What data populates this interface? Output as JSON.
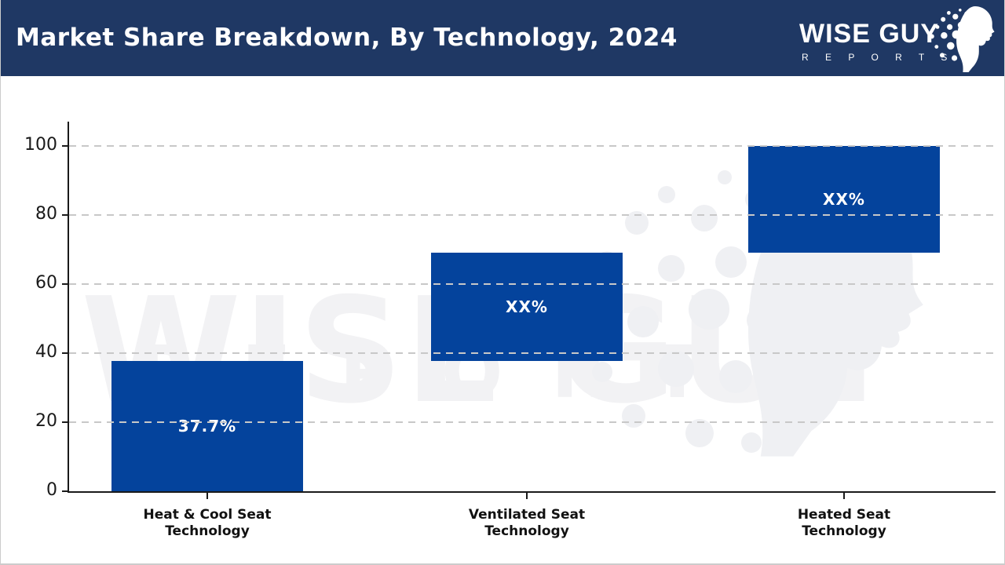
{
  "header": {
    "title": "Market Share Breakdown, By Technology, 2024",
    "logo": {
      "name": "WISE GUY",
      "sub": "R E P O R T S",
      "face_icon": "dotted-face-profile"
    },
    "bg_color": "#1f3864"
  },
  "watermark": {
    "line1": "WISE GUY",
    "line2": "REPORTS",
    "color": "#f2f2f4",
    "face_icon": "dotted-face-profile"
  },
  "chart_data": {
    "type": "bar",
    "subtype": "waterfall-stacked",
    "title": "Market Share Breakdown, By Technology, 2024",
    "categories": [
      "Heat & Cool Seat Technology",
      "Ventilated Seat Technology",
      "Heated Seat Technology"
    ],
    "x_labels": [
      {
        "line1": "Heat & Cool Seat",
        "line2": "Technology"
      },
      {
        "line1": "Ventilated Seat",
        "line2": "Technology"
      },
      {
        "line1": "Heated Seat",
        "line2": "Technology"
      }
    ],
    "bars": [
      {
        "label": "37.7%",
        "start": 0,
        "end": 37.7
      },
      {
        "label": "XX%",
        "start": 37.7,
        "end": 69
      },
      {
        "label": "XX%",
        "start": 69,
        "end": 100
      }
    ],
    "ylim": [
      0,
      100
    ],
    "yticks": [
      0,
      20,
      40,
      60,
      80,
      100
    ],
    "grid": "horizontal dashed, drawn over bars",
    "legend": "none",
    "bar_color": "#04439c",
    "bar_label_color": "#ffffff",
    "gridline_color": "#c8c8c8",
    "axis_color": "#1a1a1a"
  }
}
